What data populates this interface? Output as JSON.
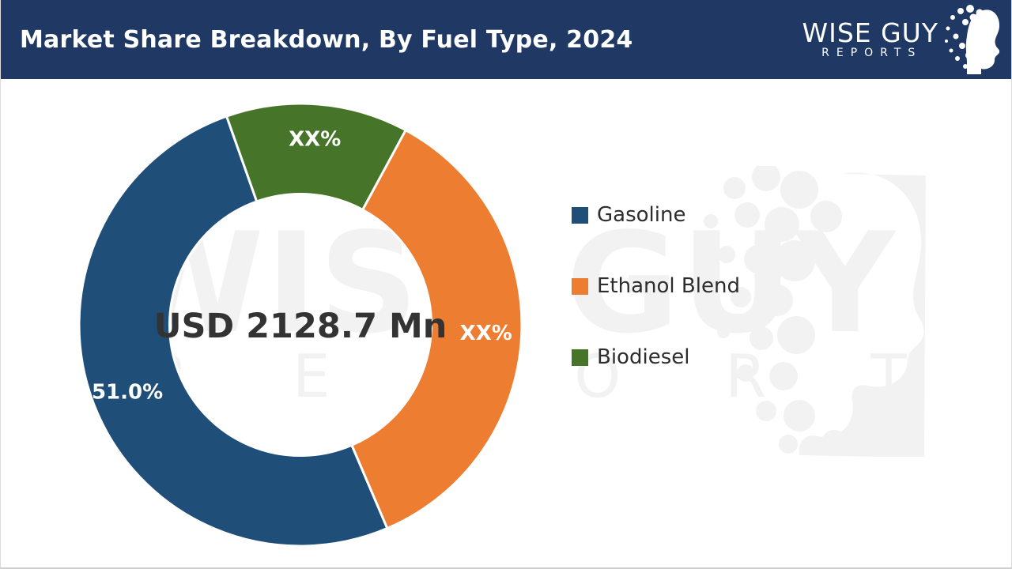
{
  "header": {
    "title": "Market Share Breakdown, By Fuel Type, 2024",
    "logo": {
      "name": "WISE GUY",
      "subtitle": "REPORTS"
    }
  },
  "colors": {
    "header_bg": "#1f3864",
    "gasoline": "#1f4e79",
    "ethanol_blend": "#ed7d31",
    "biodiesel": "#467428",
    "center_text": "#333333",
    "slice_label_text": "#ffffff",
    "watermark": "#f2f2f2"
  },
  "chart_data": {
    "type": "pie",
    "subtype": "donut",
    "title": "Market Share Breakdown, By Fuel Type, 2024",
    "center_label": "USD 2128.7 Mn",
    "legend_position": "right",
    "slices": [
      {
        "name": "Gasoline",
        "label_shown": "51.0%",
        "value_pct": 51.0,
        "color": "#1f4e79"
      },
      {
        "name": "Ethanol Blend",
        "label_shown": "XX%",
        "value_pct": 35.7,
        "color": "#ed7d31"
      },
      {
        "name": "Biodiesel",
        "label_shown": "XX%",
        "value_pct": 13.3,
        "color": "#467428"
      }
    ]
  },
  "legend": {
    "items": [
      {
        "label": "Gasoline",
        "color": "#1f4e79"
      },
      {
        "label": "Ethanol Blend",
        "color": "#ed7d31"
      },
      {
        "label": "Biodiesel",
        "color": "#467428"
      }
    ]
  },
  "watermark": {
    "line1": "WISE GUY",
    "line2": "R E P O R T S"
  }
}
